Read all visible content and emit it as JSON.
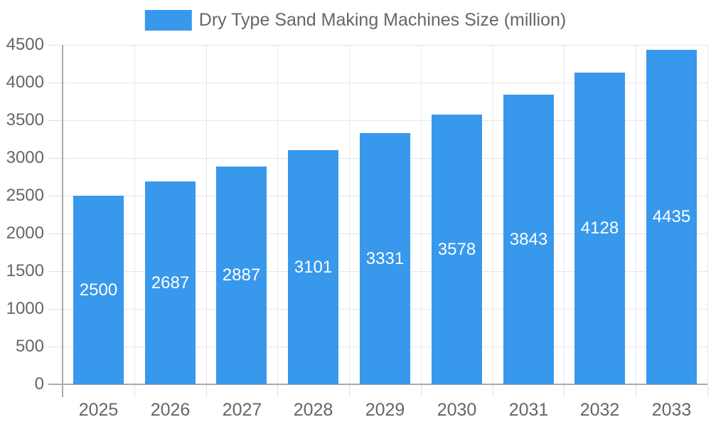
{
  "legend": {
    "label": "Dry Type Sand Making Machines Size (million)"
  },
  "colors": {
    "bar": "#3898EC",
    "text": "#666666",
    "grid": "#E6E6E6",
    "tick": "#E0E0E0",
    "axis_line": "#ABABAB",
    "value_label": "#FFFFFF",
    "background": "#FFFFFF"
  },
  "chart_data": {
    "type": "bar",
    "title": "Dry Type Sand Making Machines Size (million)",
    "categories": [
      "2025",
      "2026",
      "2027",
      "2028",
      "2029",
      "2030",
      "2031",
      "2032",
      "2033"
    ],
    "values": [
      2500,
      2687,
      2887,
      3101,
      3331,
      3578,
      3843,
      4128,
      4435
    ],
    "xlabel": "",
    "ylabel": "",
    "ylim": [
      0,
      4500
    ],
    "ytick_step": 500,
    "grid": true,
    "legend_position": "top",
    "value_label_position": "inside-center",
    "value_label_color": "#FFFFFF"
  }
}
